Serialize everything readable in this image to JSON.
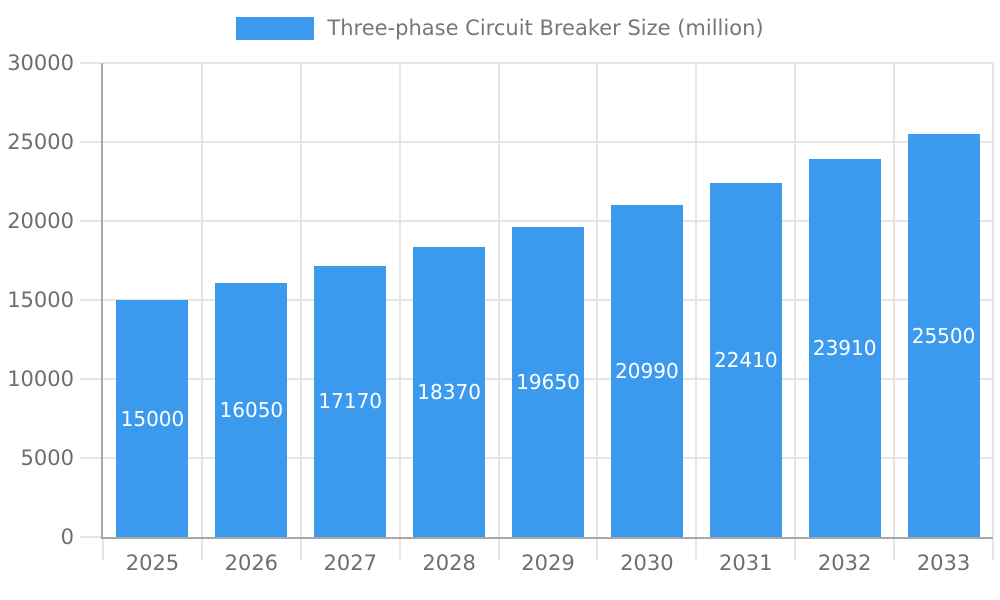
{
  "legend": {
    "label": "Three-phase Circuit Breaker Size (million)"
  },
  "chart_data": {
    "type": "bar",
    "title": "",
    "xlabel": "",
    "ylabel": "",
    "categories": [
      "2025",
      "2026",
      "2027",
      "2028",
      "2029",
      "2030",
      "2031",
      "2032",
      "2033"
    ],
    "series": [
      {
        "name": "Three-phase Circuit Breaker Size (million)",
        "values": [
          15000,
          16050,
          17170,
          18370,
          19650,
          20990,
          22410,
          23910,
          25500
        ]
      }
    ],
    "data_labels_shown": true,
    "ylim": [
      0,
      30000
    ],
    "ytick_step": 5000,
    "ytick_labels": [
      "0",
      "5000",
      "10000",
      "15000",
      "20000",
      "25000",
      "30000"
    ],
    "grid": true,
    "legend_position": "top-center",
    "colors": {
      "bar": "#3B9AEE",
      "value_label": "#FFFFFF",
      "axis": "#A8A8A8",
      "grid": "#E6E6E6",
      "tick_label": "#6E6E6E",
      "legend_text": "#777777"
    }
  }
}
